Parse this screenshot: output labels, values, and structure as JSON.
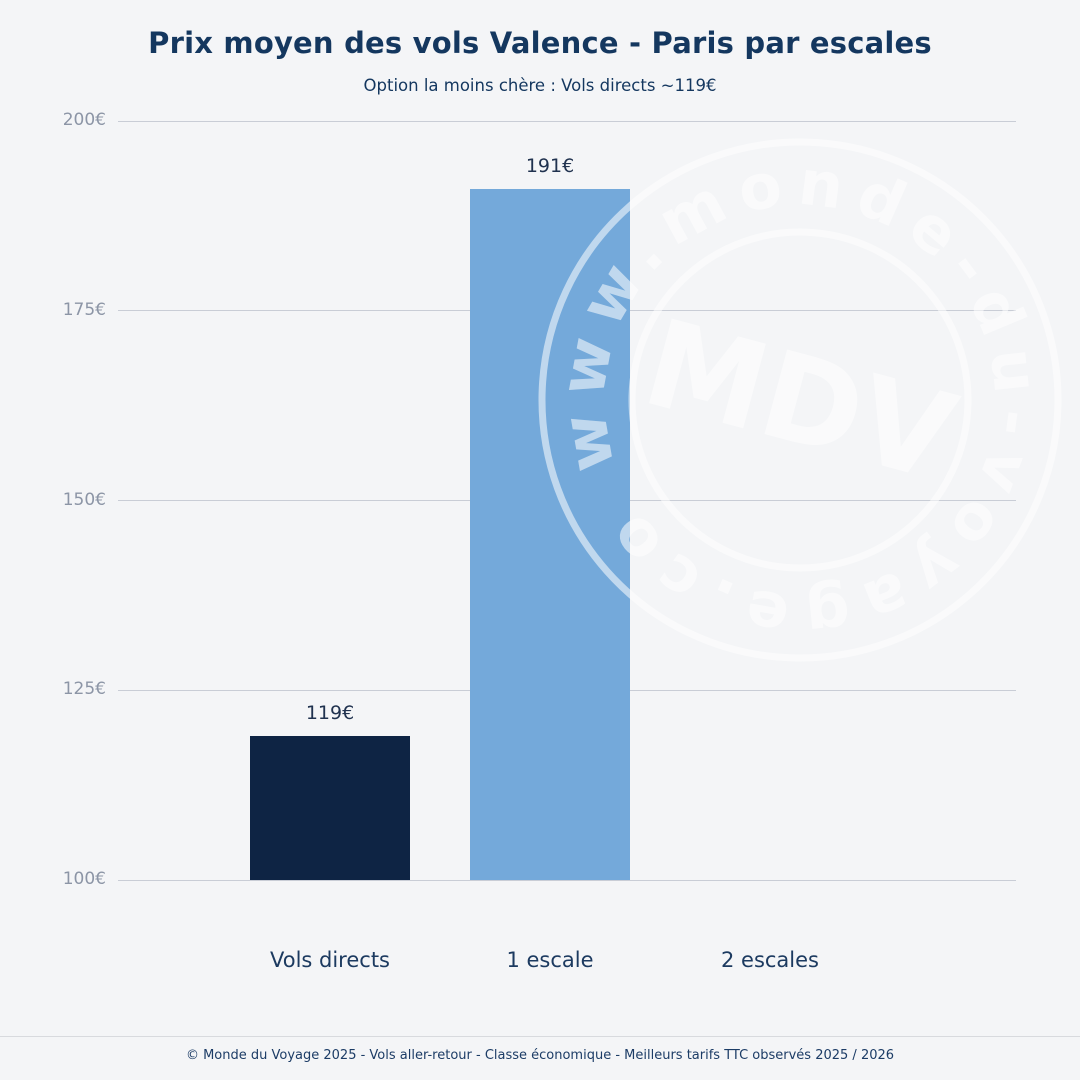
{
  "header": {
    "title": "Prix moyen des vols Valence - Paris par escales",
    "subtitle": "Option la moins chère : Vols directs ~119€"
  },
  "chart_data": {
    "type": "bar",
    "title": "Prix moyen des vols Valence - Paris par escales",
    "subtitle": "Option la moins chère : Vols directs ~119€",
    "categories": [
      "Vols directs",
      "1 escale",
      "2 escales"
    ],
    "values": [
      119,
      191,
      null
    ],
    "value_labels": [
      "119€",
      "191€",
      ""
    ],
    "bar_colors": [
      "#0e2444",
      "#74a9da",
      "#74a9da"
    ],
    "ylim": [
      100,
      200
    ],
    "yticks": [
      100,
      125,
      150,
      175,
      200
    ],
    "ytick_labels": [
      "100€",
      "125€",
      "150€",
      "175€",
      "200€"
    ],
    "grid": true,
    "legend": false,
    "currency": "€"
  },
  "watermark": {
    "circle_text": "www.monde-du-voyage.com",
    "initials": "MDV"
  },
  "footer": {
    "text": "© Monde du Voyage 2025 - Vols aller-retour - Classe économique - Meilleurs tarifs TTC observés 2025 / 2026"
  },
  "colors": {
    "background": "#f4f5f7",
    "title": "#14375f",
    "bar_dark": "#0e2444",
    "bar_light": "#74a9da",
    "gridline": "#c9cdd6",
    "tick_label": "#8c95a6"
  }
}
